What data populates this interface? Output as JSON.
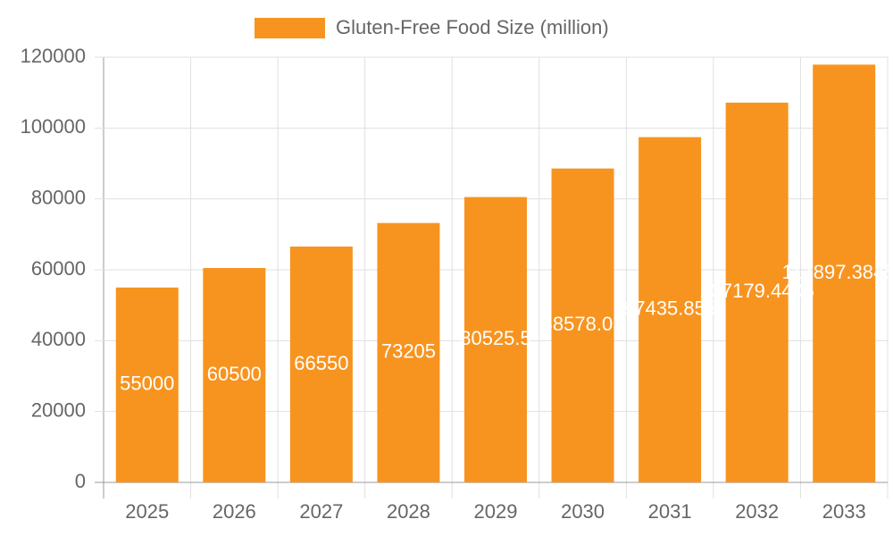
{
  "chart_data": {
    "type": "bar",
    "categories": [
      "2025",
      "2026",
      "2027",
      "2028",
      "2029",
      "2030",
      "2031",
      "2032",
      "2033"
    ],
    "series": [
      {
        "name": "Gluten-Free Food Size (million)",
        "color": "#f79420",
        "values": [
          55000,
          60500,
          66550,
          73205,
          80525.5,
          88578.05,
          97435.855,
          107179.4405,
          117897.38455
        ]
      }
    ],
    "ylim": [
      0,
      120000
    ],
    "yticks": [
      0,
      20000,
      40000,
      60000,
      80000,
      100000,
      120000
    ],
    "grid": true,
    "legend": "top"
  }
}
